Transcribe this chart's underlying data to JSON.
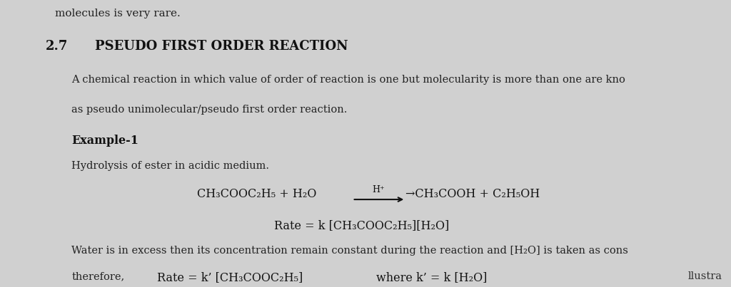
{
  "bg_color": "#d0d0d0",
  "top_text": "molecules is very rare.",
  "heading_number": "2.7",
  "heading_text": "PSEUDO FIRST ORDER REACTION",
  "para1": "A chemical reaction in which value of order of reaction is one but molecularity is more than one are kno",
  "para2": "as pseudo unimolecular/pseudo first order reaction.",
  "example_label": "Example-1",
  "example_desc": "Hydrolysis of ester in acidic medium.",
  "equation_lhs": "CH₃COOC₂H₅ + H₂O",
  "equation_arrow_label": "H⁺",
  "equation_rhs": "→CH₃COOH + C₂H₅OH",
  "rate_eq": "Rate = k [CH₃COOC₂H₅][H₂O]",
  "water_text": "Water is in excess then its concentration remain constant during the reaction and [H₂O] is taken as cons",
  "therefore_label": "therefore,",
  "rate_eq2": "Rate = k’ [CH₃COOC₂H₅]",
  "where_text": "where k’ = k [H₂O]",
  "right_label": "llustra",
  "font_size_top": 11,
  "font_size_heading_num": 13,
  "font_size_heading": 13,
  "font_size_body": 10.5,
  "font_size_example": 11.5,
  "font_size_eq": 11.5
}
